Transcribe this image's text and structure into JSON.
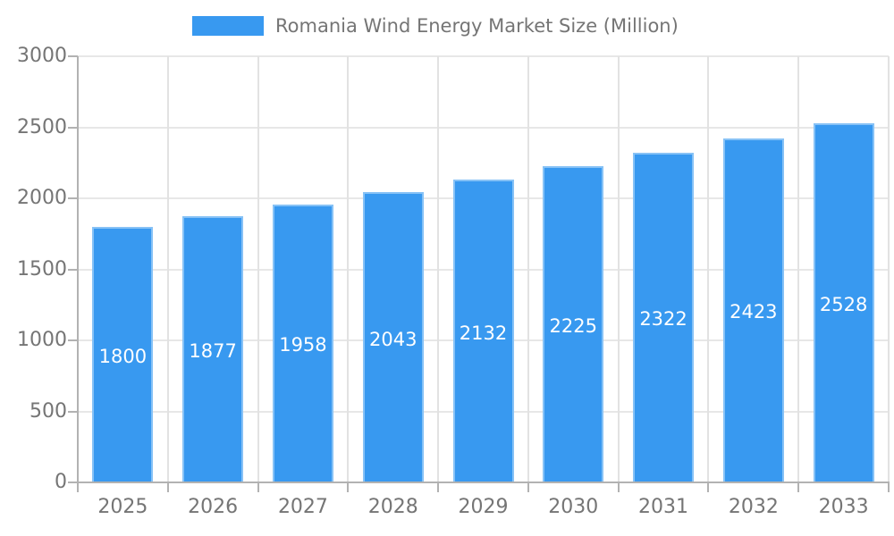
{
  "legend": {
    "label": "Romania Wind Energy Market Size (Million)",
    "swatch_color": "#3899F0"
  },
  "chart_data": {
    "type": "bar",
    "title": "Romania Wind Energy Market Size (Million)",
    "series_name": "Romania Wind Energy Market Size (Million)",
    "categories": [
      "2025",
      "2026",
      "2027",
      "2028",
      "2029",
      "2030",
      "2031",
      "2032",
      "2033"
    ],
    "values": [
      1800,
      1877,
      1958,
      2043,
      2132,
      2225,
      2322,
      2423,
      2528
    ],
    "value_labels": [
      "1800",
      "1877",
      "1958",
      "2043",
      "2132",
      "2225",
      "2322",
      "2423",
      "2528"
    ],
    "xlabel": "",
    "ylabel": "",
    "ylim": [
      0,
      3000
    ],
    "yticks": [
      0,
      500,
      1000,
      1500,
      2000,
      2500,
      3000
    ],
    "ytick_labels": [
      "0",
      "500",
      "1000",
      "1500",
      "2000",
      "2500",
      "3000"
    ],
    "grid": true,
    "legend_position": "top",
    "bar_color": "#3899F0",
    "value_label_color": "#ffffff",
    "axis_label_color": "#757575",
    "gridline_color": "#e7e7e7",
    "axis_line_color": "#b2b2b2",
    "background_color": "#ffffff"
  }
}
